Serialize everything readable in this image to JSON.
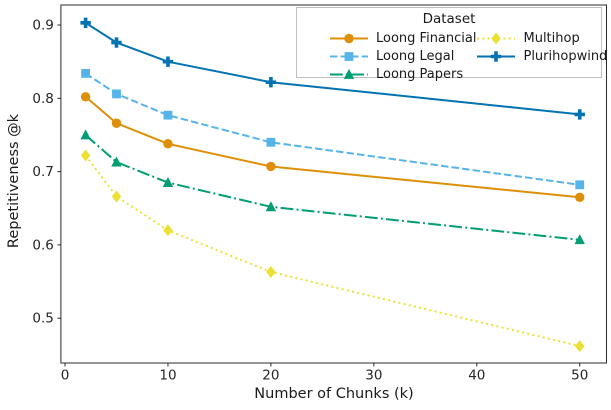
{
  "chart_data": {
    "type": "line",
    "title": "",
    "xlabel": "Number of Chunks (k)",
    "ylabel": "Repetitiveness @k",
    "x": [
      2,
      5,
      10,
      20,
      50
    ],
    "xticks": [
      0,
      10,
      20,
      30,
      40,
      50
    ],
    "yticks": [
      0.5,
      0.6,
      0.7,
      0.8,
      0.9
    ],
    "xlim": [
      -0.4,
      52.6
    ],
    "ylim": [
      0.4389,
      0.9273
    ],
    "grid": false,
    "legend": {
      "title": "Dataset",
      "position": "upper right",
      "columns": [
        [
          "Loong Financial",
          "Loong Legal",
          "Loong Papers"
        ],
        [
          "Multihop",
          "Plurihopwind"
        ]
      ]
    },
    "series": [
      {
        "name": "Loong Financial",
        "color": "#DE8F05",
        "linestyle": "solid",
        "marker": "circle",
        "values": [
          0.802,
          0.766,
          0.738,
          0.707,
          0.665
        ]
      },
      {
        "name": "Loong Legal",
        "color": "#56B4E9",
        "linestyle": "dashed",
        "marker": "square",
        "values": [
          0.834,
          0.806,
          0.777,
          0.74,
          0.682
        ]
      },
      {
        "name": "Loong Papers",
        "color": "#029E73",
        "linestyle": "dashdot",
        "marker": "triangle",
        "values": [
          0.75,
          0.713,
          0.685,
          0.652,
          0.607
        ]
      },
      {
        "name": "Multihop",
        "color": "#ECE133",
        "linestyle": "dotted",
        "marker": "diamond",
        "values": [
          0.722,
          0.666,
          0.62,
          0.563,
          0.462
        ]
      },
      {
        "name": "Plurihopwind",
        "color": "#0173B2",
        "linestyle": "solid",
        "marker": "plus",
        "values": [
          0.903,
          0.876,
          0.85,
          0.822,
          0.778
        ]
      }
    ],
    "style": {
      "spine_color": "#2b2b2b",
      "tick_label_color": "#262626",
      "text_color": "#1a1a1a"
    }
  }
}
